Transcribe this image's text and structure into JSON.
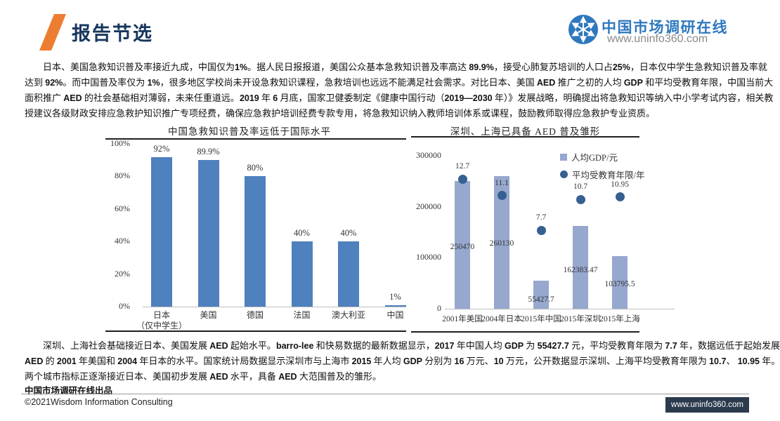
{
  "header": {
    "title": "报告节选",
    "brand": {
      "name": "中国市场调研在线",
      "url": "www.uninfo360.com"
    }
  },
  "icons": {
    "header_accent": "slash-icon",
    "brand": "compass-logo-icon"
  },
  "colors": {
    "accent_orange": "#ED7D31",
    "title_navy": "#17365D",
    "brand_blue": "#2E78BE",
    "bar_blue": "#4E81BD",
    "bar_light_blue": "#97A8CE",
    "dot_blue": "#376092",
    "footer_badge_bg": "#2B3A4D"
  },
  "paragraph_top": {
    "lines": [
      "　　日本、美国急救知识普及率接近九成，中国仅为**1%**。据人民日报报道，美国公众基本急救知识普及率高达 **89.9%**，接受心肺复苏培训的人口占**25%**，日本仅中学生急救知识普及率就",
      "达到 **92%**。而中国普及率仅为 **1%**，很多地区学校尚未开设急救知识课程，急救培训也远远不能满足社会需求。对比日本、美国 **AED** 推广之初的人均 **GDP** 和平均受教育年限，中国当前大",
      "面积推广 **AED** 的社会基础相对薄弱，未来任重道远。**2019** 年 **6** 月底，国家卫健委制定《健康中国行动（**2019—2030** 年）》发展战略，明确提出将急救知识等纳入中小学考试内容，相关教",
      "授建议各级财政安排应急救护知识推广专项经费，确保应急救护培训经费专款专用，将急救知识纳入教师培训体系或课程，鼓励教师取得应急救护专业资质。"
    ]
  },
  "chart_data": [
    {
      "type": "bar",
      "title": "中国急救知识普及率远低于国际水平",
      "categories": [
        "日本\n（仅中学生）",
        "美国",
        "德国",
        "法国",
        "澳大利亚",
        "中国"
      ],
      "values": [
        92,
        89.9,
        80,
        40,
        40,
        1
      ],
      "labels": [
        "92%",
        "89.9%",
        "80%",
        "40%",
        "40%",
        "1%"
      ],
      "yticks": [
        "100%",
        "80%",
        "60%",
        "40%",
        "20%",
        "0%"
      ],
      "ylim": [
        0,
        100
      ],
      "grid": false,
      "legend": false
    },
    {
      "type": "bar+scatter",
      "title": "深圳、上海已具备 AED 普及雏形",
      "categories": [
        "2001年美国",
        "2004年日本",
        "2015年中国",
        "2015年深圳",
        "2015年上海"
      ],
      "series": [
        {
          "name": "人均GDP/元",
          "type": "bar",
          "values": [
            250470,
            260130,
            55427.7,
            162383.47,
            103795.5
          ],
          "labels": [
            "250470",
            "260130",
            "55427.7",
            "162383.47",
            "103795.5"
          ],
          "ylim": [
            0,
            300000
          ]
        },
        {
          "name": "平均受教育年限/年",
          "type": "scatter",
          "values": [
            12.7,
            11.1,
            7.7,
            10.7,
            10.95
          ],
          "labels": [
            "12.7",
            "11.1",
            "7.7",
            "10.7",
            "10.95"
          ],
          "ylim": [
            0,
            15
          ]
        }
      ],
      "yticks": [
        "300000",
        "200000",
        "100000",
        "0"
      ],
      "grid": false,
      "legend_position": "top-right-inside"
    }
  ],
  "paragraph_bottom": {
    "lines": [
      "　　深圳、上海社会基础接近日本、美国发展 **AED** 起始水平。**barro-lee** 和快易数据的最新数据显示，**2017** 年中国人均 **GDP** 为 **55427.7** 元，平均受教育年限为 **7.7** 年，数据远低于起始发展",
      "**AED** 的 **2001** 年美国和 **2004** 年日本的水平。国家统计局数据显示深圳市与上海市 **2015** 年人均 **GDP** 分别为 **16** 万元、**10** 万元，公开数据显示深圳、上海平均受教育年限为 **10.7**、 **10.95** 年。",
      "两个城市指标正逐渐接近日本、美国初步发展 **AED** 水平，具备 **AED** 大范围普及的雏形。"
    ]
  },
  "footer": {
    "produced_by": "中国市场调研在线出品",
    "copyright": "©2021Wisdom Information Consulting",
    "site_badge": "www.uninfo360.com"
  }
}
